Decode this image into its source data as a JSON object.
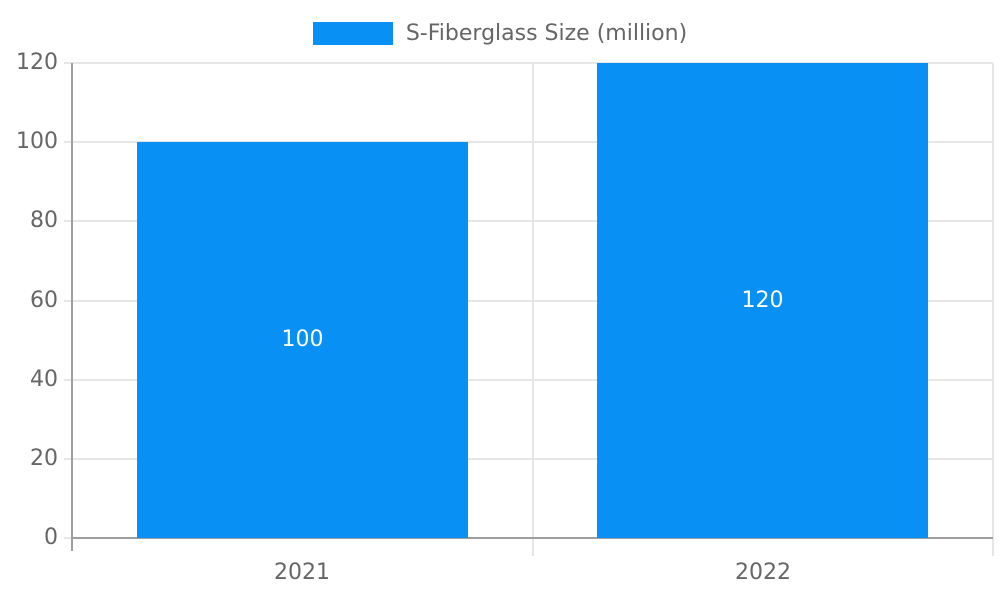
{
  "chart_data": {
    "type": "bar",
    "title": "S-Fiberglass Size (million)",
    "categories": [
      "2021",
      "2022"
    ],
    "series": [
      {
        "name": "S-Fiberglass Size (million)",
        "values": [
          100,
          120
        ]
      }
    ],
    "bar_labels": [
      "100",
      "120"
    ],
    "xlabel": "",
    "ylabel": "",
    "ylim": [
      0,
      120
    ],
    "yticks": [
      0,
      20,
      40,
      60,
      80,
      100,
      120
    ],
    "grid": true,
    "legend_position": "top-center",
    "colors": {
      "bar": "#0990f5",
      "axis": "#9e9e9e",
      "gridline": "#e6e6e6",
      "tick_text": "#666666",
      "bar_label_text": "#ffffff",
      "background": "#ffffff"
    }
  }
}
